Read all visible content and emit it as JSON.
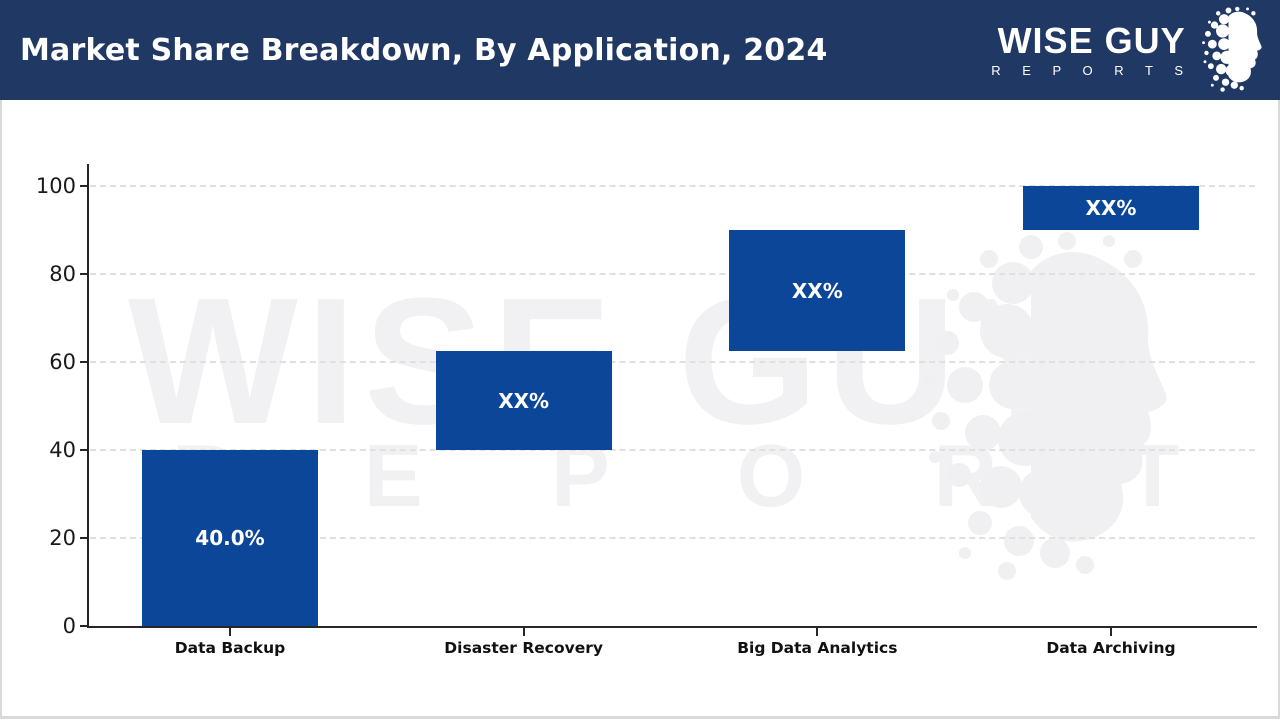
{
  "header": {
    "title": "Market Share Breakdown, By Application, 2024",
    "bg_color": "#203864",
    "logo": {
      "line1": "WISE GUY",
      "line2": "R E P O R T S"
    }
  },
  "watermark": {
    "line1": "WISE GUY",
    "line2": "R E P O R T S"
  },
  "chart_data": {
    "type": "bar",
    "subtype": "waterfall",
    "title": "Market Share Breakdown, By Application, 2024",
    "categories": [
      "Data Backup",
      "Disaster Recovery",
      "Big Data Analytics",
      "Data Archiving"
    ],
    "segments": [
      {
        "category": "Data Backup",
        "start": 0,
        "end": 40,
        "label": "40.0%"
      },
      {
        "category": "Disaster Recovery",
        "start": 40,
        "end": 62.5,
        "label": "XX%"
      },
      {
        "category": "Big Data Analytics",
        "start": 62.5,
        "end": 90,
        "label": "XX%"
      },
      {
        "category": "Data Archiving",
        "start": 90,
        "end": 100,
        "label": "XX%"
      }
    ],
    "bar_color": "#0b4699",
    "bar_label_color": "#ffffff",
    "yticks": [
      0,
      20,
      40,
      60,
      80,
      100
    ],
    "ylim": [
      0,
      105
    ],
    "xlabel": "",
    "ylabel": "",
    "grid": "horizontal-dashed",
    "gridline_color": "#e0e0e0",
    "axis_color": "#262626",
    "legend": "none"
  }
}
